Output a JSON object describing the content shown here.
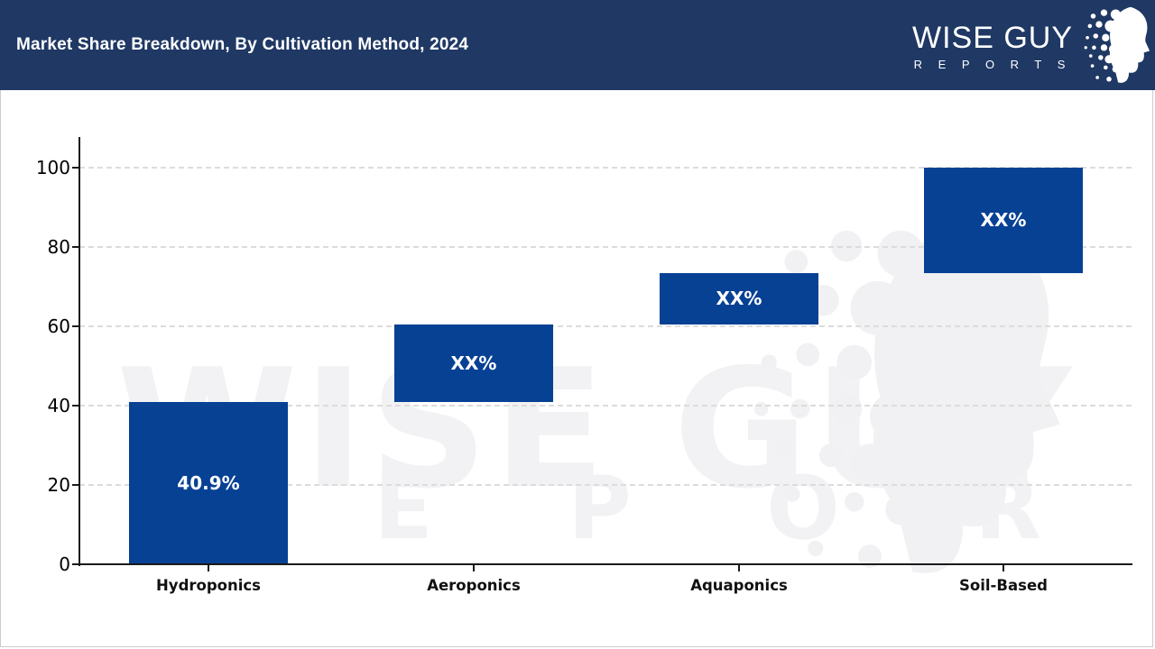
{
  "header": {
    "title": "Market Share Breakdown, By Cultivation Method, 2024",
    "logo": {
      "line1": "WISE GUY",
      "line2": "R E P O R T S"
    }
  },
  "watermark": {
    "line1": "WISE GUY",
    "line2": "R E P O R T S"
  },
  "chart_data": {
    "type": "bar",
    "subtype": "floating-waterfall",
    "title": "Market Share Breakdown, By Cultivation Method, 2024",
    "categories": [
      "Hydroponics",
      "Aeroponics",
      "Aquaponics",
      "Soil-Based"
    ],
    "segments": [
      {
        "category": "Hydroponics",
        "from": 0,
        "to": 40.9,
        "label": "40.9%"
      },
      {
        "category": "Aeroponics",
        "from": 40.9,
        "to": 60.3,
        "label": "XX%"
      },
      {
        "category": "Aquaponics",
        "from": 60.4,
        "to": 73.3,
        "label": "XX%"
      },
      {
        "category": "Soil-Based",
        "from": 73.3,
        "to": 100,
        "label": "XX%"
      }
    ],
    "ylim": [
      0,
      100
    ],
    "yticks": [
      0,
      20,
      40,
      60,
      80,
      100
    ],
    "grid": "horizontal-dashed-gray",
    "legend": "none",
    "bar_color": "#074194",
    "bar_value_label_color": "#ffffff",
    "header_background": "#1f3864",
    "axis_color": "#1a1a1a",
    "gridline_color": "#dcdcdc"
  }
}
